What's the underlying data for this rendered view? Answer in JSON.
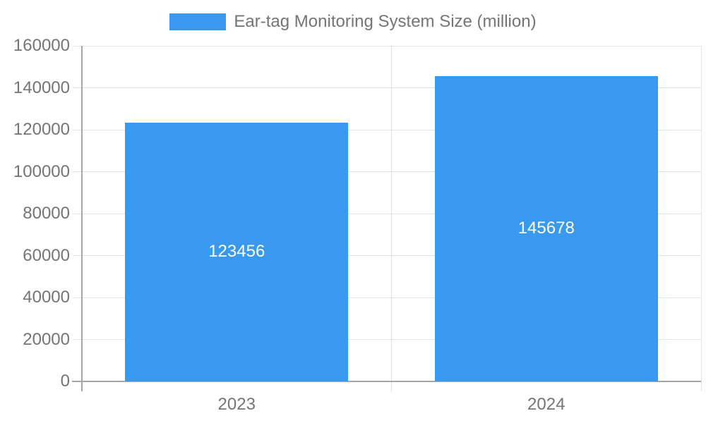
{
  "chart_data": {
    "type": "bar",
    "title": "Ear-tag Monitoring System Size (million)",
    "legend_entries": [
      "Ear-tag Monitoring System Size (million)"
    ],
    "legend_position": "top-center",
    "categories": [
      "2023",
      "2024"
    ],
    "series": [
      {
        "name": "Ear-tag Monitoring System Size (million)",
        "values": [
          123456,
          145678
        ]
      }
    ],
    "data_labels": [
      "123456",
      "145678"
    ],
    "xlabel": "",
    "ylabel": "",
    "ylim": [
      0,
      160000
    ],
    "ytick_step": 20000,
    "ytick_labels": [
      "0",
      "20000",
      "40000",
      "60000",
      "80000",
      "100000",
      "120000",
      "140000",
      "160000"
    ],
    "grid": true,
    "colors": {
      "bar": "#3899ee",
      "data_label": "#ffffff",
      "axis_line": "#a6a6a6",
      "gridline": "#e3e3e3",
      "tick_label": "#757575",
      "legend_text": "#757575"
    }
  }
}
